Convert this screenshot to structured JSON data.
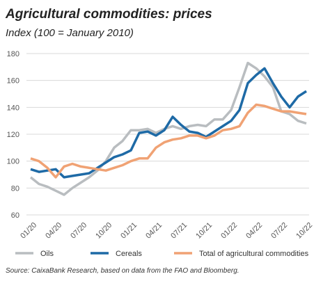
{
  "chart_data": {
    "type": "line",
    "title": "Agricultural commodities: prices",
    "subtitle": "Index (100 = January 2010)",
    "source": "Source: CaixaBank Research, based on data from the FAO and Bloomberg.",
    "categories": [
      "01/20",
      null,
      null,
      "04/20",
      null,
      null,
      "07/20",
      null,
      null,
      "10/20",
      null,
      null,
      "01/21",
      null,
      null,
      "04/21",
      null,
      null,
      "07/21",
      null,
      null,
      "10/21",
      null,
      null,
      "01/22",
      null,
      null,
      "04/22",
      null,
      null,
      "07/22",
      null,
      null,
      "10/22"
    ],
    "series": [
      {
        "name": "Oils",
        "color": "#b9bdc0",
        "values": [
          88,
          83,
          81,
          78,
          75,
          80,
          84,
          88,
          93,
          100,
          110,
          115,
          123,
          123,
          124,
          121,
          124,
          126,
          124,
          126,
          127,
          126,
          131,
          131,
          138,
          155,
          173,
          169,
          163,
          155,
          137,
          135,
          130,
          128
        ]
      },
      {
        "name": "Cereals",
        "color": "#1e6aa6",
        "values": [
          94,
          92,
          93,
          94,
          88,
          89,
          90,
          91,
          95,
          99,
          103,
          105,
          108,
          121,
          122,
          119,
          123,
          133,
          127,
          122,
          121,
          118,
          122,
          126,
          130,
          138,
          158,
          164,
          169,
          158,
          148,
          140,
          148,
          152
        ]
      },
      {
        "name": "Total of agricultural commodities",
        "color": "#f0a274",
        "values": [
          102,
          100,
          95,
          88,
          96,
          98,
          96,
          95,
          94,
          93,
          95,
          97,
          100,
          102,
          102,
          110,
          114,
          116,
          117,
          119,
          119,
          117,
          119,
          123,
          124,
          126,
          136,
          142,
          141,
          139,
          137,
          137,
          136,
          135
        ]
      }
    ],
    "ylim": [
      60,
      180
    ],
    "yticks": [
      60,
      80,
      100,
      120,
      140,
      160,
      180
    ],
    "grid": true,
    "legend": "bottom"
  }
}
